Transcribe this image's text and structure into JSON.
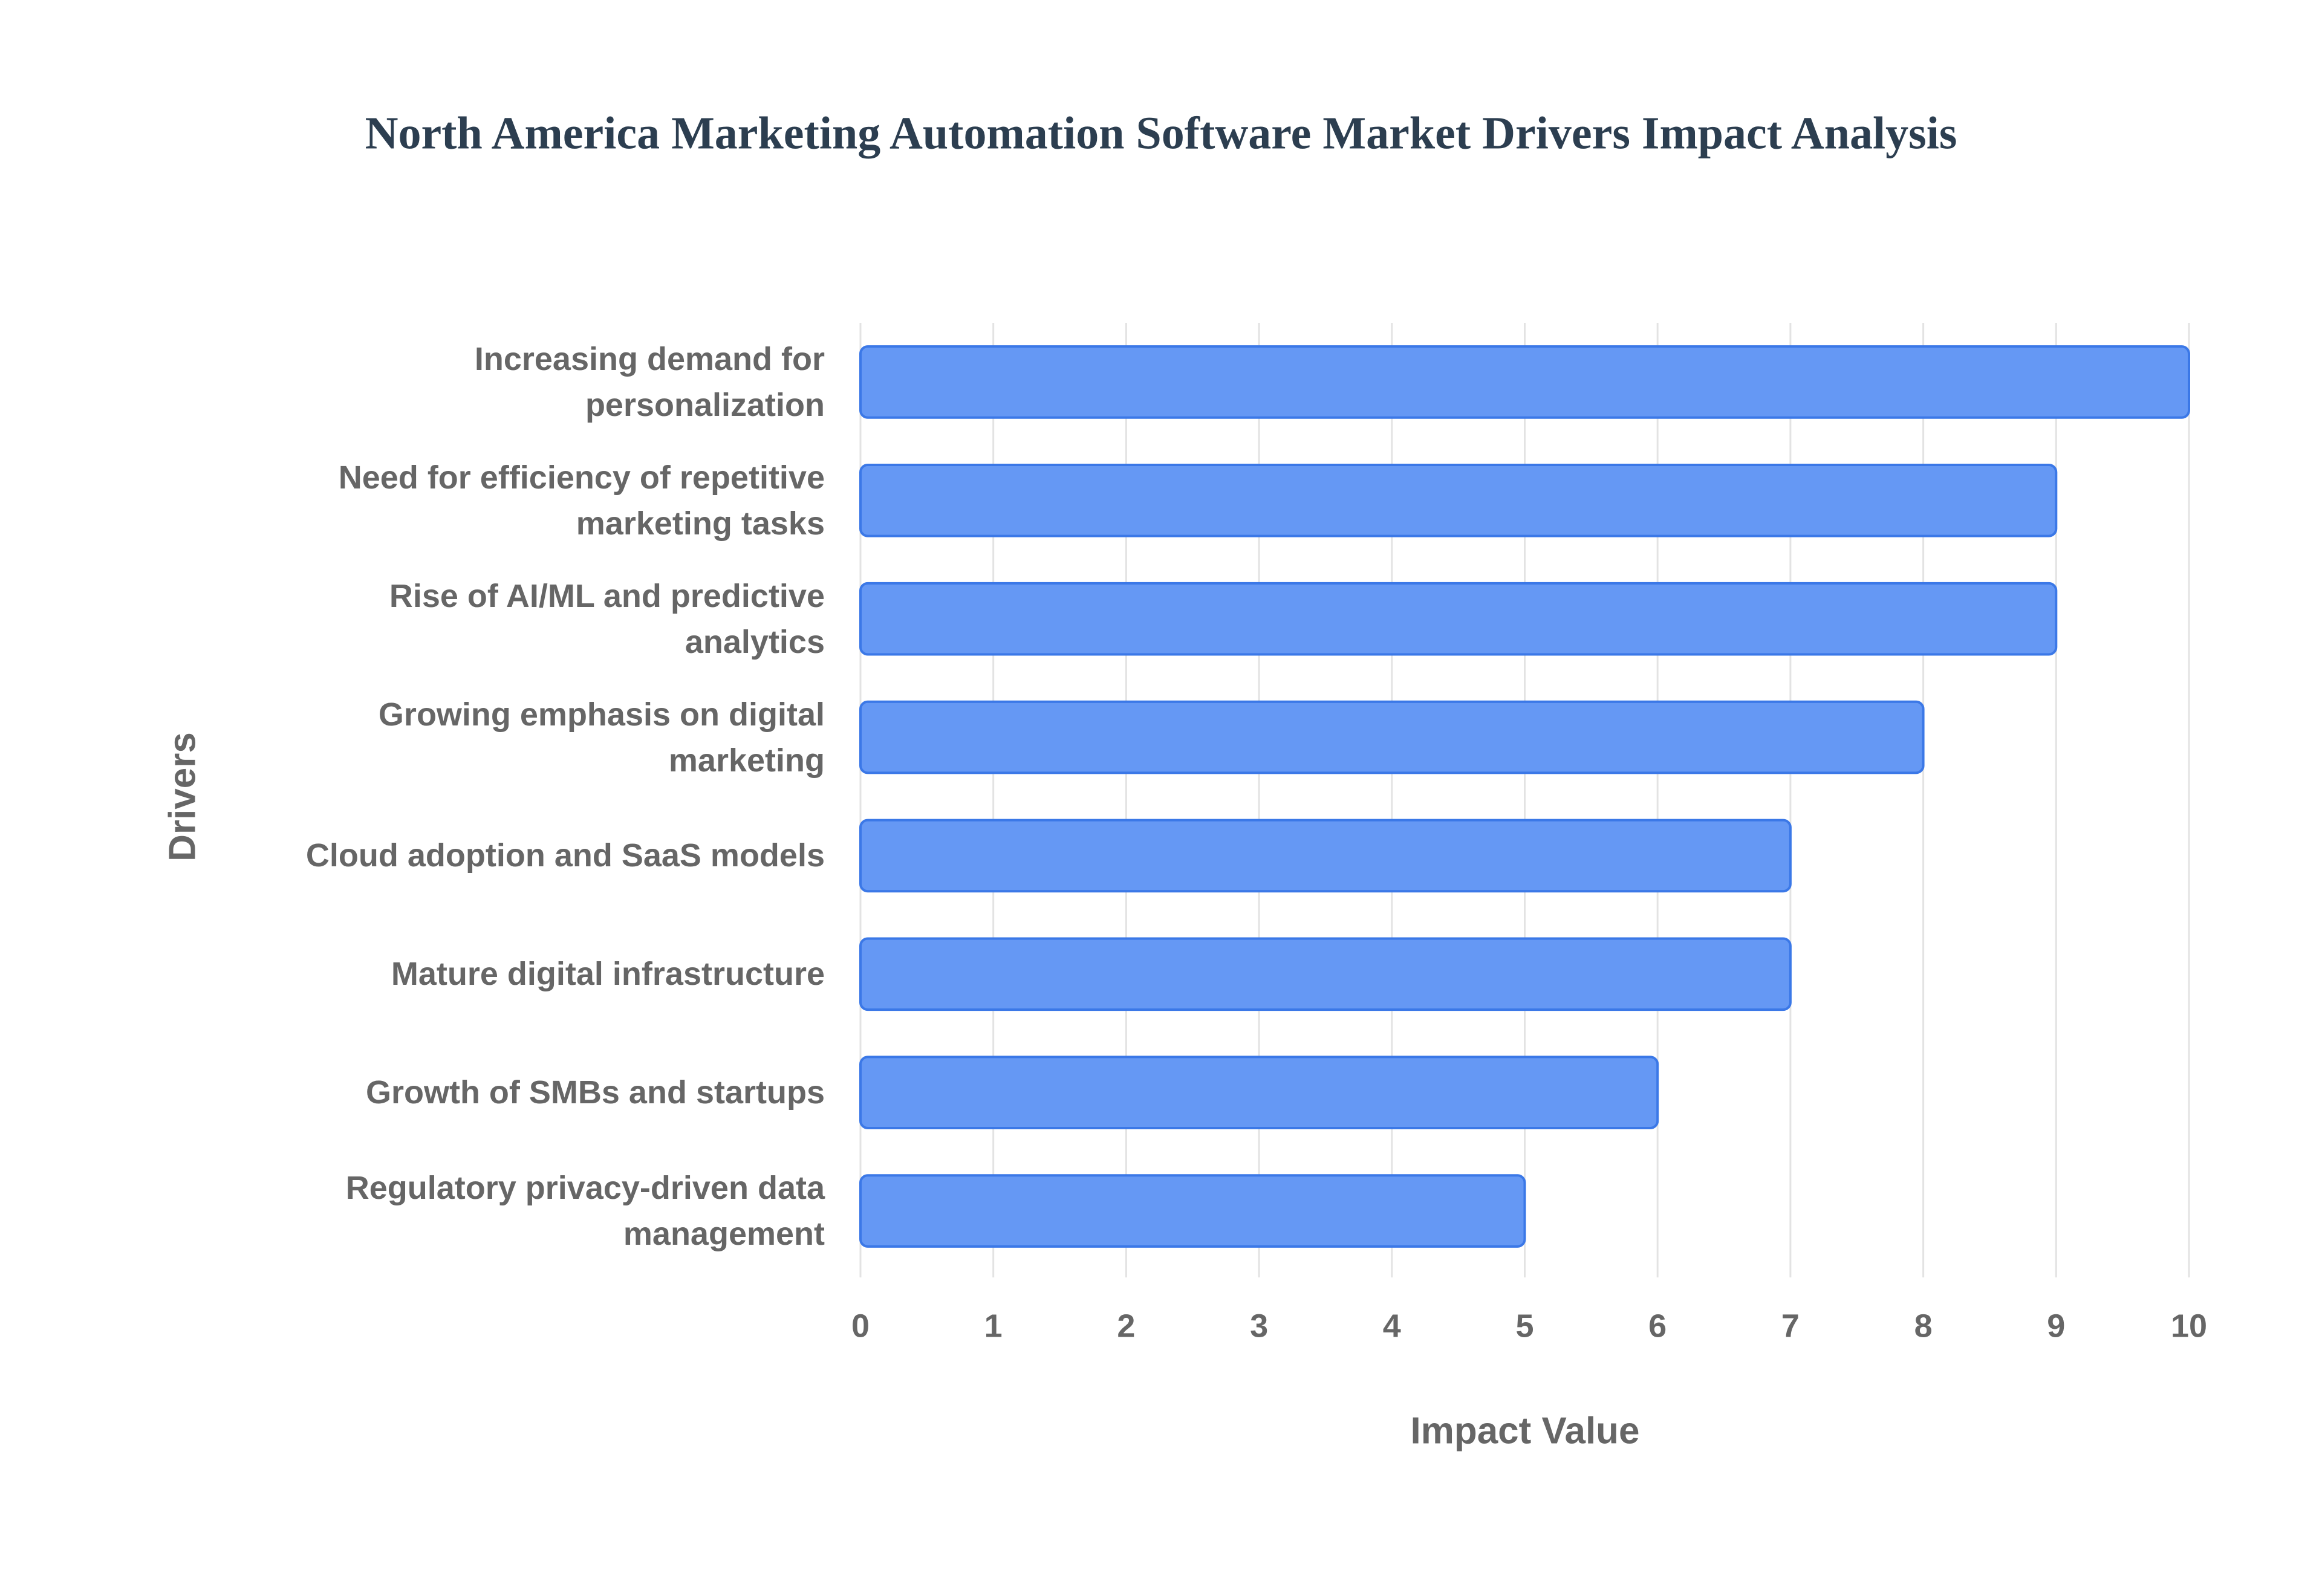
{
  "chart_data": {
    "type": "bar",
    "orientation": "horizontal",
    "title": "North America Marketing Automation Software Market Drivers Impact Analysis",
    "x_label": "Impact Value",
    "y_label": "Drivers",
    "categories": [
      "Increasing demand for personalization",
      "Need for efficiency of repetitive marketing tasks",
      "Rise of AI/ML and predictive analytics",
      "Growing emphasis on digital marketing",
      "Cloud adoption and SaaS models",
      "Mature digital infrastructure",
      "Growth of SMBs and startups",
      "Regulatory privacy-driven data management"
    ],
    "values": [
      10,
      9,
      9,
      8,
      7,
      7,
      6,
      5
    ],
    "color": "#6598f4",
    "xlim": [
      0,
      10
    ],
    "xticks": [
      0,
      1,
      2,
      3,
      4,
      5,
      6,
      7,
      8,
      9,
      10
    ],
    "grid": true
  }
}
